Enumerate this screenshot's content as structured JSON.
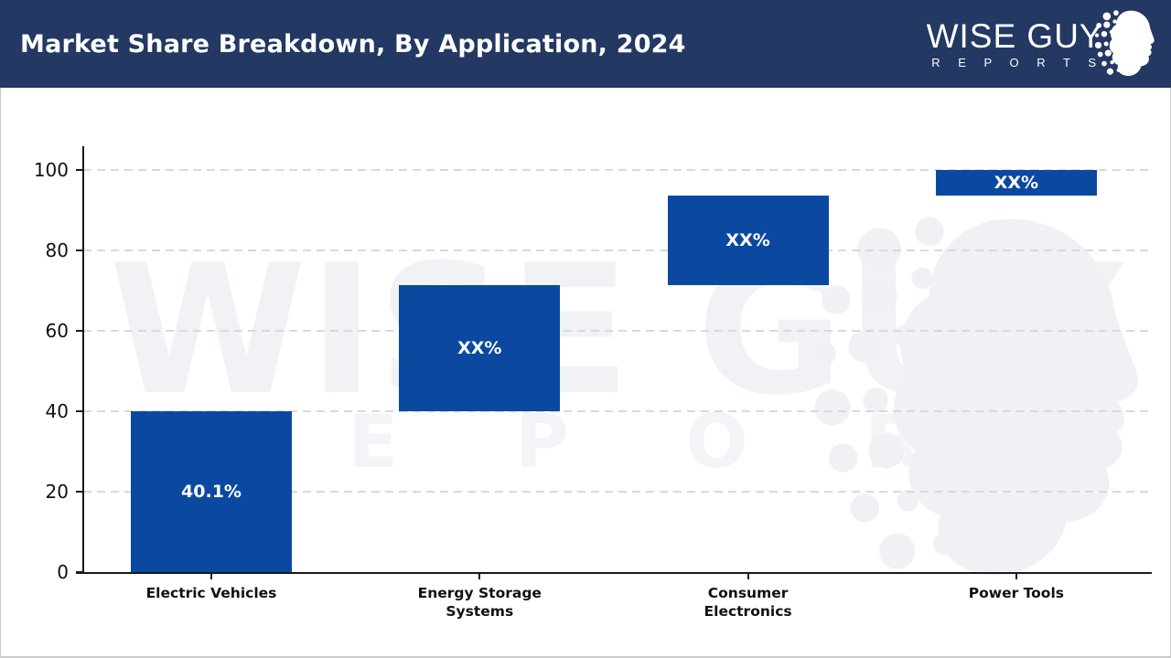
{
  "header": {
    "title": "Market Share Breakdown, By Application, 2024",
    "bg_color": "#233862",
    "logo": {
      "line1": "WISE GUY",
      "line2": "R E P O R T S",
      "head_icon": "dotted-head-profile-icon"
    }
  },
  "watermark": {
    "line1": "WISE GUY",
    "line2": "R E P O R T S",
    "head_icon": "dotted-head-profile-icon"
  },
  "chart_data": {
    "type": "bar",
    "subtype": "waterfall",
    "title": "Market Share Breakdown, By Application, 2024",
    "xlabel": "",
    "ylabel": "",
    "categories": [
      "Electric Vehicles",
      "Energy Storage\nSystems",
      "Consumer\nElectronics",
      "Power Tools"
    ],
    "bars": [
      {
        "category": "Electric Vehicles",
        "label": "40.1%",
        "start": 0,
        "end": 40.1,
        "value": 40.1
      },
      {
        "category": "Energy Storage Systems",
        "label": "XX%",
        "start": 40.1,
        "end": 71.4,
        "value": 31.3
      },
      {
        "category": "Consumer Electronics",
        "label": "XX%",
        "start": 71.4,
        "end": 93.7,
        "value": 22.3
      },
      {
        "category": "Power Tools",
        "label": "XX%",
        "start": 93.7,
        "end": 100,
        "value": 6.3
      }
    ],
    "yticks": [
      0,
      20,
      40,
      60,
      80,
      100
    ],
    "ylim": [
      0,
      105
    ],
    "bar_color": "#0b49a1",
    "grid": "horizontal-dashed",
    "gridline_color": "#d9d9d9",
    "legend": "none"
  }
}
